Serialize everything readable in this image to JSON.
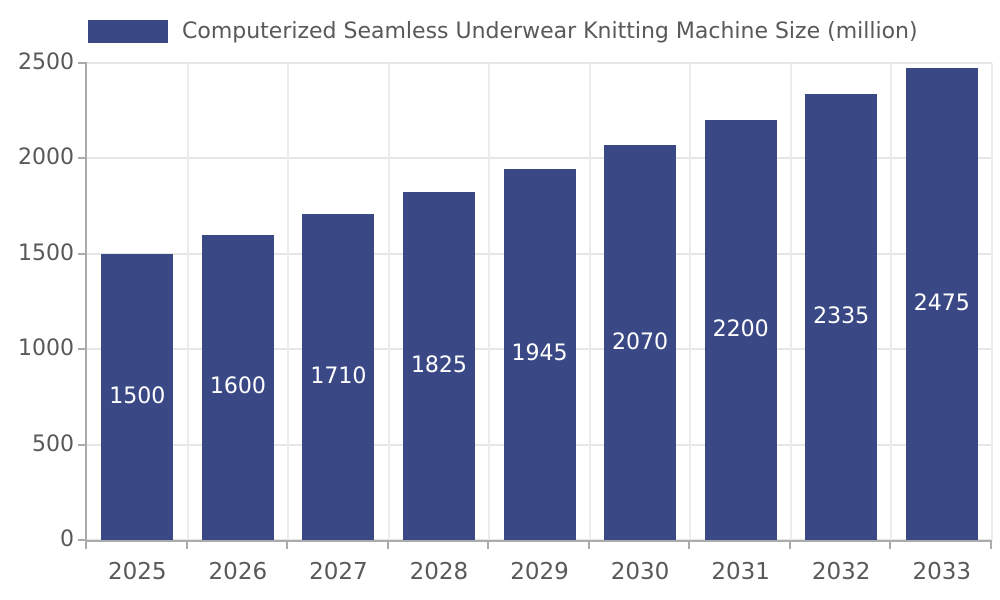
{
  "chart_data": {
    "type": "bar",
    "title": "Computerized Seamless Underwear Knitting Machine Size (million)",
    "legend_label": "Computerized Seamless Underwear Knitting Machine Size (million)",
    "categories": [
      "2025",
      "2026",
      "2027",
      "2028",
      "2029",
      "2030",
      "2031",
      "2032",
      "2033"
    ],
    "values": [
      1500,
      1600,
      1710,
      1825,
      1945,
      2070,
      2200,
      2335,
      2475
    ],
    "xlabel": "",
    "ylabel": "",
    "ylim": [
      0,
      2500
    ],
    "yticks": [
      0,
      500,
      1000,
      1500,
      2000,
      2500
    ],
    "grid": true,
    "legend_position": "top-left",
    "value_labels": "inside-center",
    "colors": {
      "bar": "#3a4985",
      "bar_value_label": "#ffffff",
      "axis": "#ababab",
      "grid": "#e6e6e6",
      "tick_label": "#595959",
      "legend_text": "#595959",
      "background": "#ffffff"
    }
  }
}
